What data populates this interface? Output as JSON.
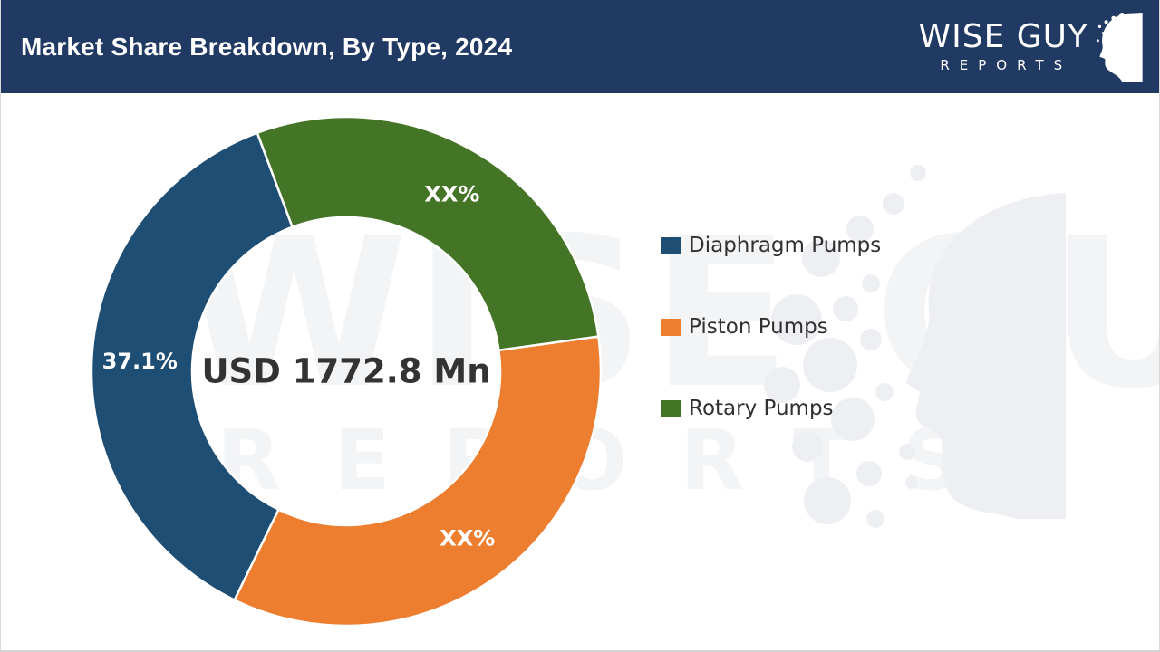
{
  "header": {
    "title": "Market Share Breakdown, By Type, 2024",
    "bg_color": "#213A64",
    "logo": {
      "line1": "WISE GUY",
      "line2": "REPORTS"
    }
  },
  "watermark": {
    "line1": "WISE GUY",
    "line2": "REPORTS"
  },
  "chart_data": {
    "type": "pie",
    "subtype": "donut",
    "title": "Market Share Breakdown, By Type, 2024",
    "center_label": "USD 1772.8 Mn",
    "legend_position": "right",
    "start_angle_deg": 206,
    "draw_order": [
      0,
      2,
      1
    ],
    "center": {
      "x": 381,
      "y": 307
    },
    "outer_radius": 281,
    "inner_radius": 170,
    "label_radius": 228,
    "series": [
      {
        "name": "Diaphragm Pumps",
        "value_pct": 37.1,
        "label": "37.1%",
        "color": "#1F4E74"
      },
      {
        "name": "Piston Pumps",
        "value_pct": 34.4,
        "label": "XX%",
        "color": "#ED7D2F"
      },
      {
        "name": "Rotary Pumps",
        "value_pct": 28.5,
        "label": "XX%",
        "color": "#447426"
      }
    ]
  }
}
